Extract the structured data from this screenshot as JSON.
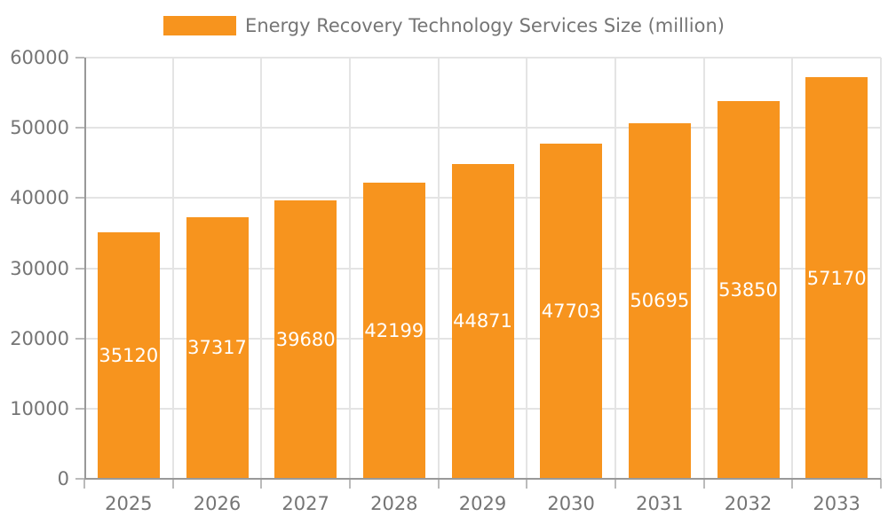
{
  "legend": {
    "label": "Energy Recovery Technology Services Size (million)"
  },
  "chart_data": {
    "type": "bar",
    "title": "",
    "series_name": "Energy Recovery Technology Services Size (million)",
    "categories": [
      "2025",
      "2026",
      "2027",
      "2028",
      "2029",
      "2030",
      "2031",
      "2032",
      "2033"
    ],
    "values": [
      35120,
      37317,
      39680,
      42199,
      44871,
      47703,
      50695,
      53850,
      57170
    ],
    "xlabel": "",
    "ylabel": "",
    "ylim": [
      0,
      60000
    ],
    "yticks": [
      0,
      10000,
      20000,
      30000,
      40000,
      50000,
      60000
    ],
    "grid": true,
    "legend_position": "top-center",
    "bar_labels_visible": true
  },
  "colors": {
    "bar": "#f7941e",
    "bar_label": "#ffffff",
    "axis_line": "#999999",
    "tick_line": "#bbbbbb",
    "grid_line": "#e4e4e4",
    "tick_text": "#757575",
    "legend_text": "#757575",
    "background": "#ffffff"
  }
}
